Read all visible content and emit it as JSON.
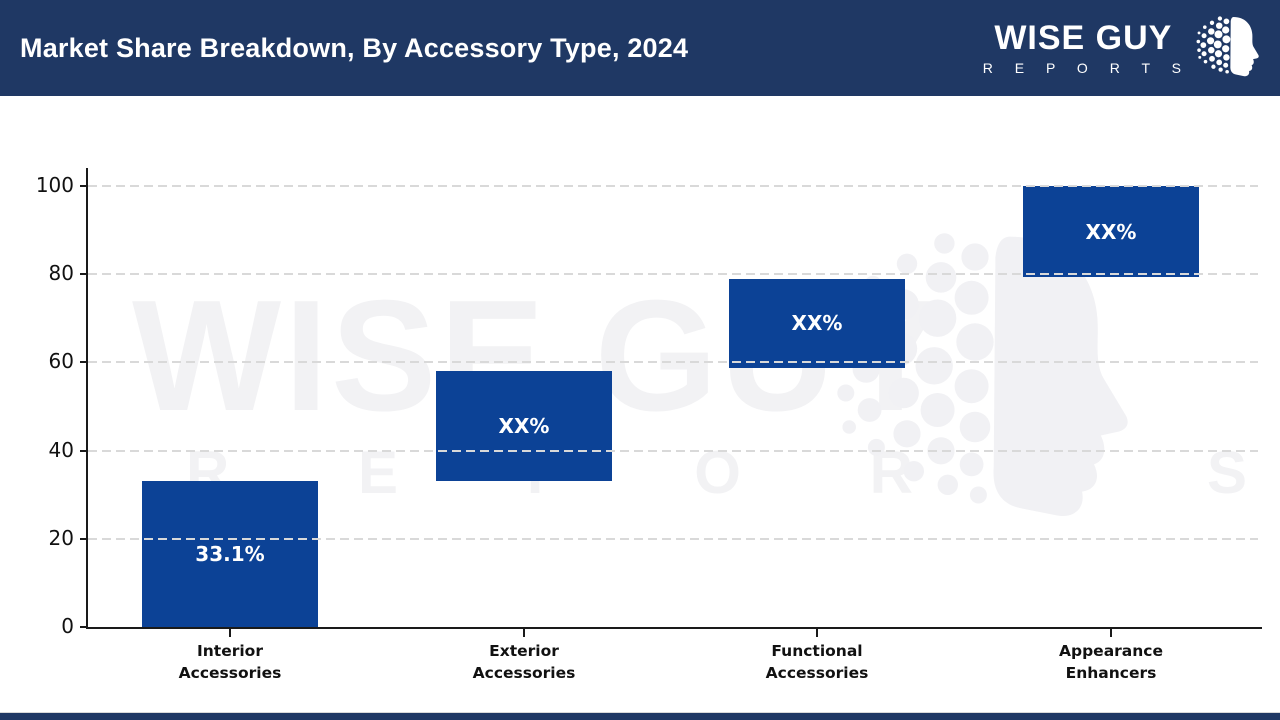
{
  "header": {
    "title": "Market Share Breakdown, By Accessory Type, 2024",
    "logo": {
      "line1": "WISE GUY",
      "line2": "REPORTS"
    }
  },
  "watermark": {
    "line1": "WISE GUY",
    "line2": "REPORTS"
  },
  "colors": {
    "header_bg": "#1f3864",
    "footer_bg": "#1f3864",
    "bar": "#0c4296",
    "grid": "#d9d9d9",
    "axis": "#1a1a1a",
    "value_label": "#ffffff",
    "watermark": "#f2f2f4"
  },
  "chart_data": {
    "type": "bar",
    "subtype": "waterfall",
    "title": "Market Share Breakdown, By Accessory Type, 2024",
    "categories": [
      "Interior Accessories",
      "Exterior Accessories",
      "Functional Accessories",
      "Appearance Enhancers"
    ],
    "segments": [
      {
        "category": "Interior Accessories",
        "start": 0,
        "end": 33.1,
        "label": "33.1%"
      },
      {
        "category": "Exterior Accessories",
        "start": 33.1,
        "end": 58.1,
        "label": "XX%"
      },
      {
        "category": "Functional Accessories",
        "start": 58.8,
        "end": 79.0,
        "label": "XX%"
      },
      {
        "category": "Appearance Enhancers",
        "start": 79.3,
        "end": 100,
        "label": "XX%"
      }
    ],
    "y_ticks": [
      0,
      20,
      40,
      60,
      80,
      100
    ],
    "ylim": [
      0,
      105
    ],
    "xlabel": "",
    "ylabel": "",
    "grid": "horizontal-dashed",
    "legend": "none"
  }
}
